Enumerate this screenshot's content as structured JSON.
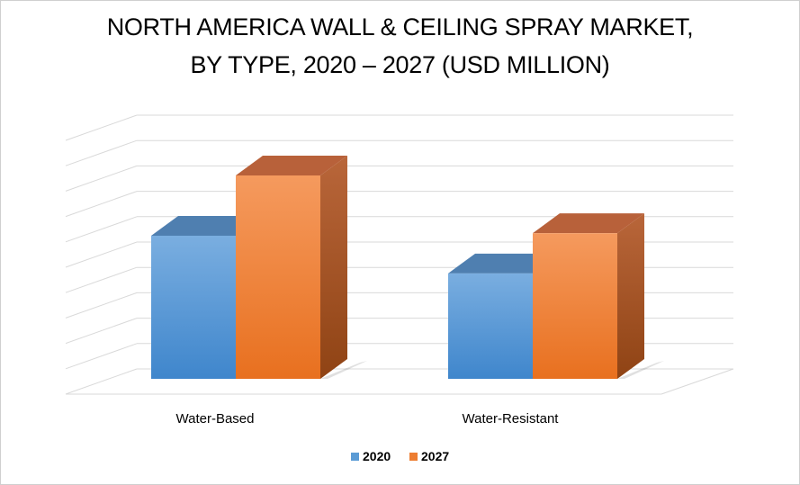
{
  "chart_data": {
    "type": "bar",
    "title_lines": [
      "NORTH AMERICA WALL & CEILING SPRAY MARKET,",
      "BY TYPE, 2020 – 2027 (USD MILLION)"
    ],
    "categories": [
      "Water-Based",
      "Water-Resistant"
    ],
    "series": [
      {
        "name": "2020",
        "values": [
          57,
          42
        ],
        "color": "#5b9bd5"
      },
      {
        "name": "2027",
        "values": [
          81,
          58
        ],
        "color": "#ed7d31"
      }
    ],
    "ylim": [
      0,
      100
    ],
    "grid": true,
    "legend_position": "bottom"
  }
}
